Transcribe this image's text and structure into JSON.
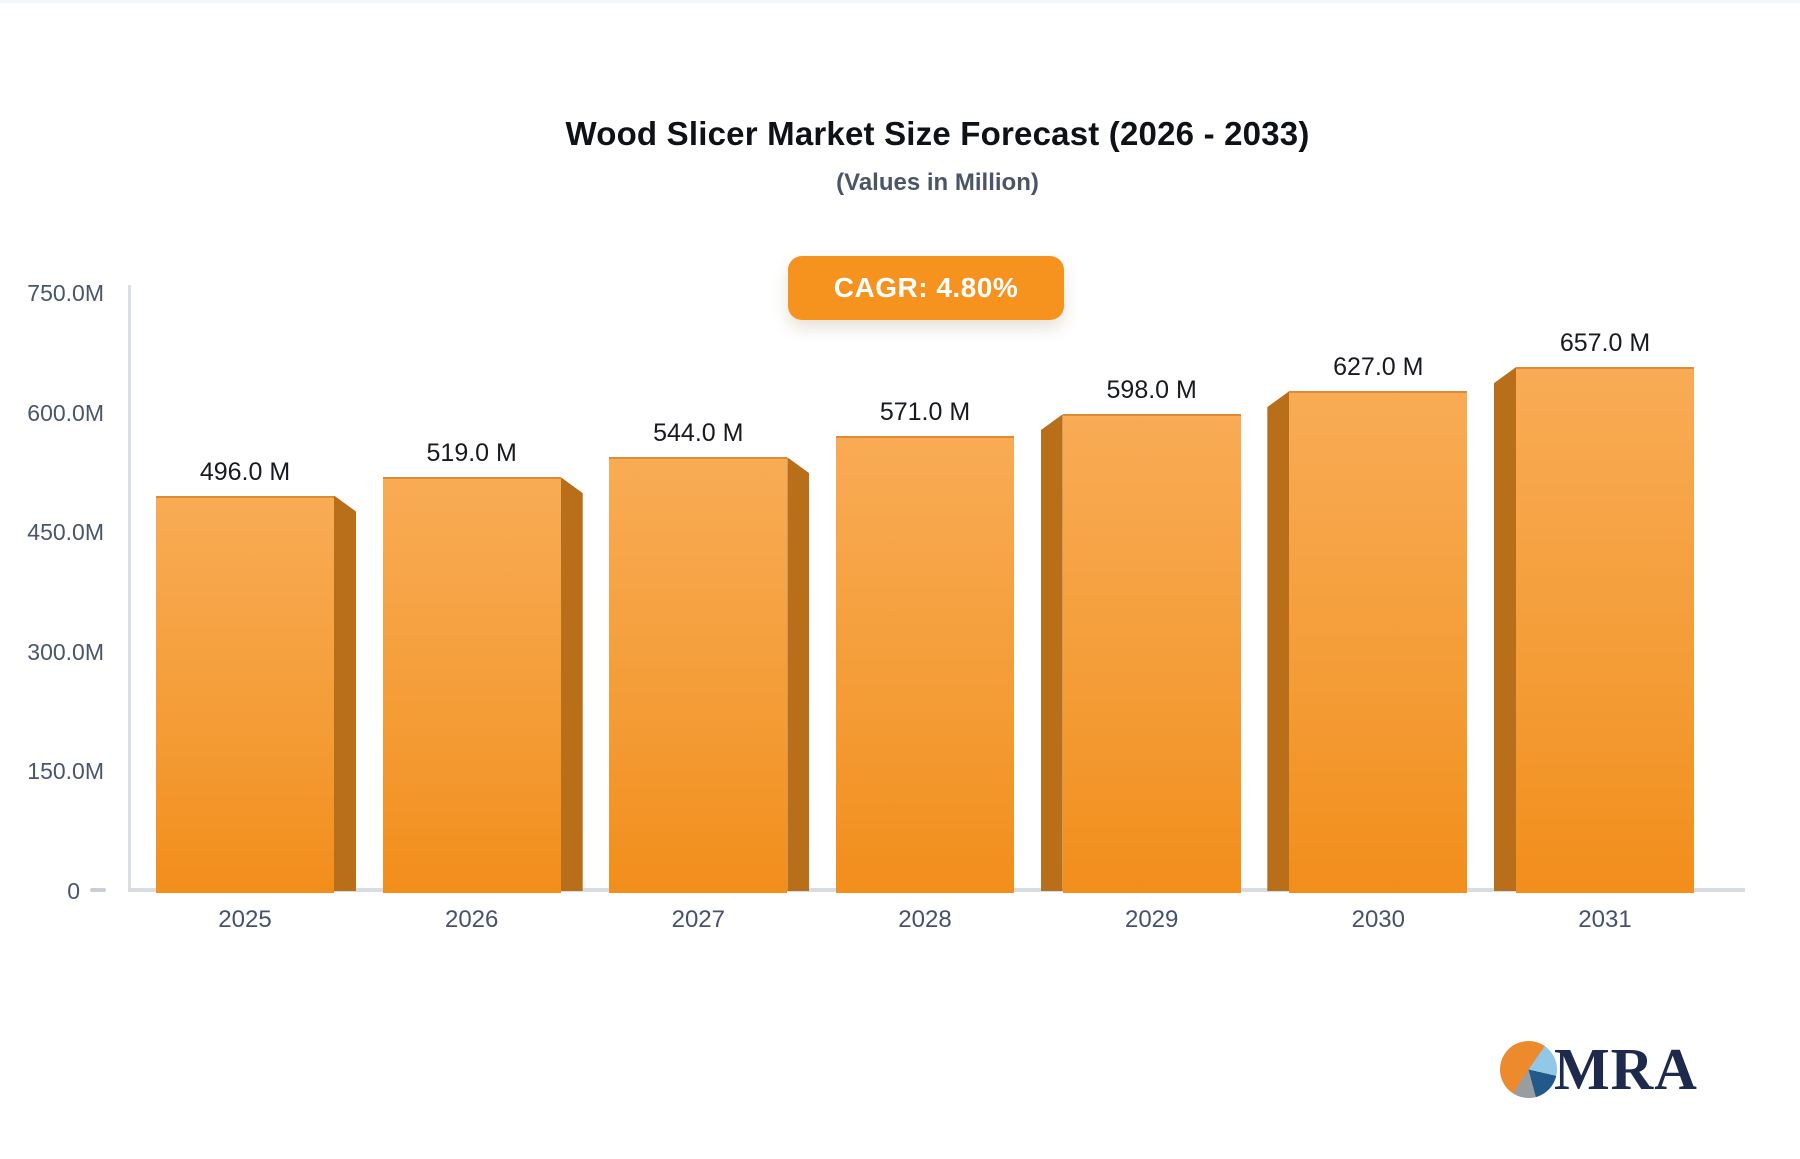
{
  "header": {
    "title": "Wood Slicer Market Size Forecast (2026 - 2033)",
    "subtitle": "(Values in Million)",
    "cagr_badge": "CAGR: 4.80%"
  },
  "chart_data": {
    "type": "bar",
    "title": "Wood Slicer Market Size Forecast (2026 - 2033)",
    "subtitle": "(Values in Million)",
    "unit": "Million",
    "cagr": "4.80%",
    "categories": [
      "2025",
      "2026",
      "2027",
      "2028",
      "2029",
      "2030",
      "2031"
    ],
    "values": [
      496.0,
      519.0,
      544.0,
      571.0,
      598.0,
      627.0,
      657.0
    ],
    "value_labels": [
      "496.0 M",
      "519.0 M",
      "544.0 M",
      "571.0 M",
      "598.0 M",
      "627.0 M",
      "657.0 M"
    ],
    "y_tick_labels": [
      "750.0M",
      "600.0M",
      "450.0M",
      "300.0M",
      "150.0M",
      "0"
    ],
    "y_tick_values": [
      750,
      600,
      450,
      300,
      150,
      0
    ],
    "ylim": [
      0,
      750
    ],
    "grid": false,
    "legend": false,
    "bar_3d_side_by_bar": [
      "right",
      "right",
      "right",
      "none",
      "left",
      "left",
      "left"
    ]
  },
  "colors": {
    "accent_orange": "#F6921E",
    "bar_face_top": "#F9AB55",
    "bar_face_bottom": "#F28E1B",
    "bar_side": "#B96E1A",
    "axis_line": "#DBDEE3",
    "axis_text": "#4A566B",
    "value_text": "#171A1F",
    "title_text": "#0E1116",
    "subtitle_text": "#4A5568",
    "background": "#FFFFFF"
  },
  "logo": {
    "text": "MRA",
    "text_color": "#1D2A4D",
    "pie_slice_colors": {
      "orange": "#EE8A2E",
      "light_blue": "#92C7E8",
      "navy": "#20598A",
      "gray": "#9A9DA0"
    }
  }
}
